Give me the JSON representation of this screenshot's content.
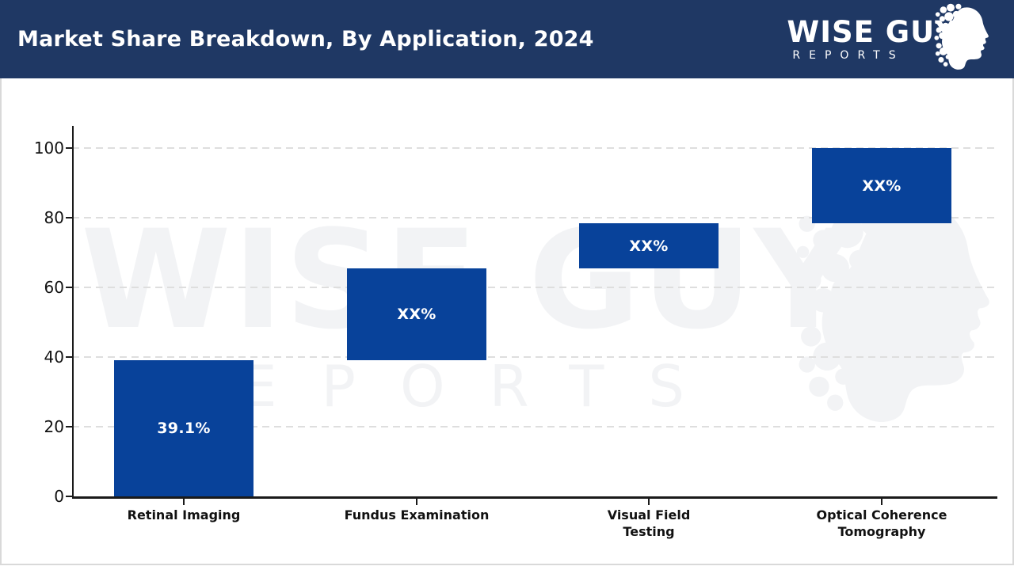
{
  "header": {
    "title": "Market Share Breakdown, By Application, 2024",
    "logo": {
      "line1": "WISE GUY",
      "line2": "REPORTS"
    }
  },
  "watermark": {
    "line1": "WISE GUY",
    "line2": "REPORTS"
  },
  "colors": {
    "header_bg": "#1f3864",
    "bar": "#08429a",
    "grid": "#dedede",
    "axis": "#1a1a1a",
    "watermark": "#f2f3f5",
    "title_text": "#ffffff",
    "bar_label_text": "#ffffff"
  },
  "icons": {
    "logo_face": "wiseguy-face-icon"
  },
  "chart_data": {
    "type": "bar",
    "subtype": "waterfall",
    "title": "Market Share Breakdown, By Application, 2024",
    "categories": [
      "Retinal Imaging",
      "Fundus Examination",
      "Visual Field Testing",
      "Optical Coherence Tomography"
    ],
    "categories_display": [
      [
        "Retinal Imaging"
      ],
      [
        "Fundus Examination"
      ],
      [
        "Visual Field",
        "Testing"
      ],
      [
        "Optical Coherence",
        "Tomography"
      ]
    ],
    "segments": [
      {
        "category": "Retinal Imaging",
        "start": 0,
        "end": 39.1,
        "label": "39.1%"
      },
      {
        "category": "Fundus Examination",
        "start": 39.1,
        "end": 65.4,
        "label": "XX%"
      },
      {
        "category": "Visual Field Testing",
        "start": 65.4,
        "end": 78.4,
        "label": "XX%"
      },
      {
        "category": "Optical Coherence Tomography",
        "start": 78.4,
        "end": 100,
        "label": "XX%"
      }
    ],
    "xlabel": "",
    "ylabel": "",
    "ylim": [
      0,
      100
    ],
    "yticks": [
      0,
      20,
      40,
      60,
      80,
      100
    ],
    "grid": "horizontal-dashed",
    "legend": "none",
    "bar_color": "#08429a"
  }
}
